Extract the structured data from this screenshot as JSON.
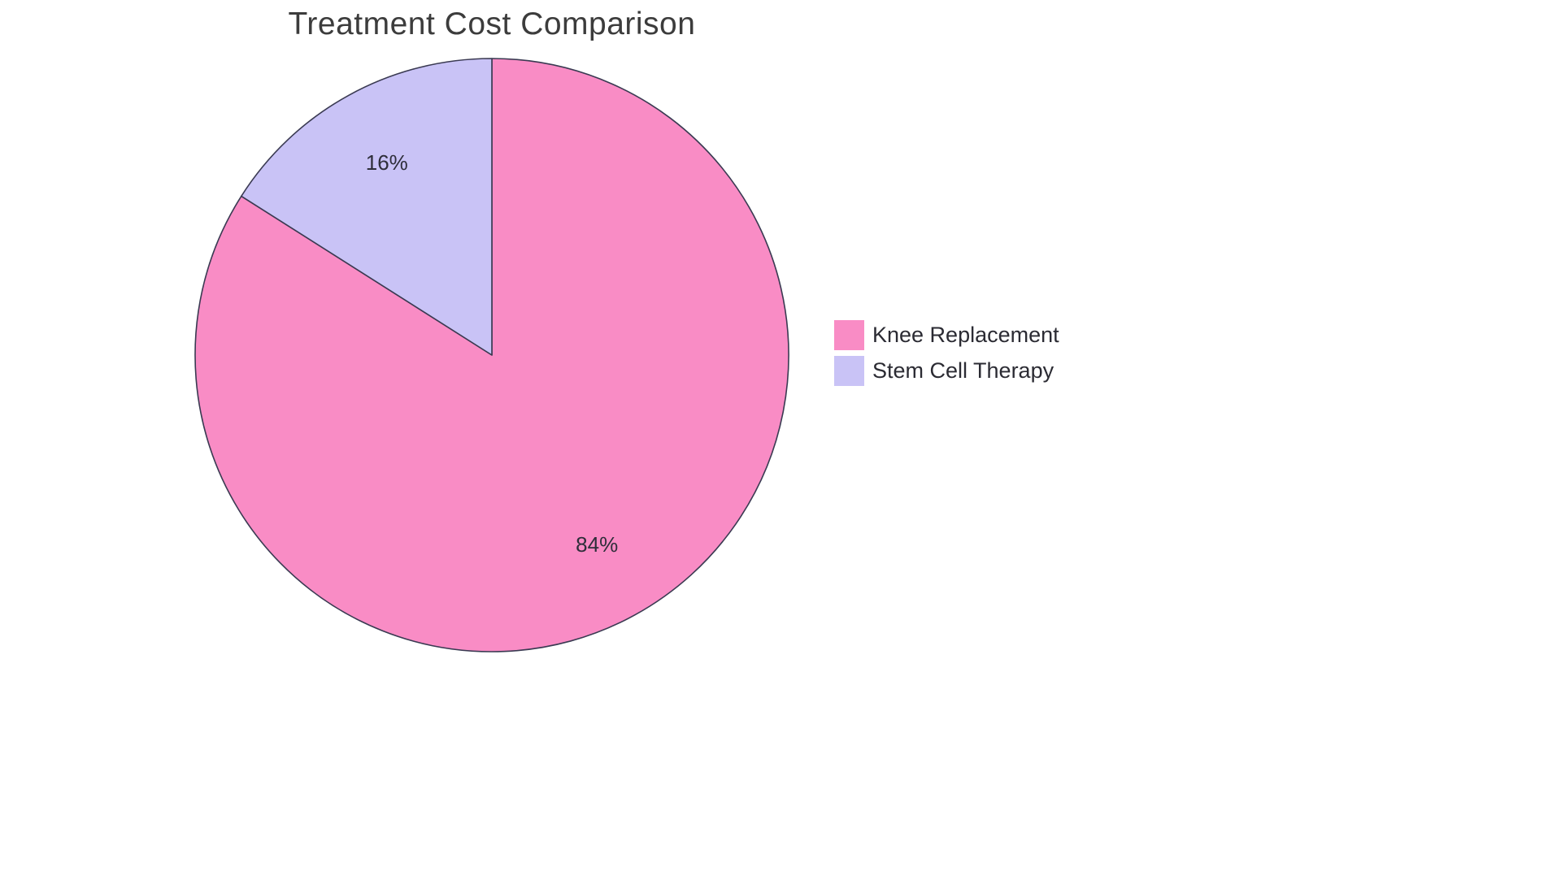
{
  "title": "Treatment Cost Comparison",
  "chart_data": {
    "type": "pie",
    "title": "Treatment Cost Comparison",
    "labels": [
      "Knee Replacement",
      "Stem Cell Therapy"
    ],
    "values": [
      84,
      16
    ],
    "percent_labels": [
      "84%",
      "16%"
    ],
    "colors": [
      "#F98CC5",
      "#C9C3F6"
    ],
    "stroke_color": "#3A3A52",
    "start_angle_deg": 0,
    "direction": "clockwise",
    "legend_position": "right",
    "legend_entries": [
      "Knee Replacement",
      "Stem Cell Therapy"
    ]
  }
}
